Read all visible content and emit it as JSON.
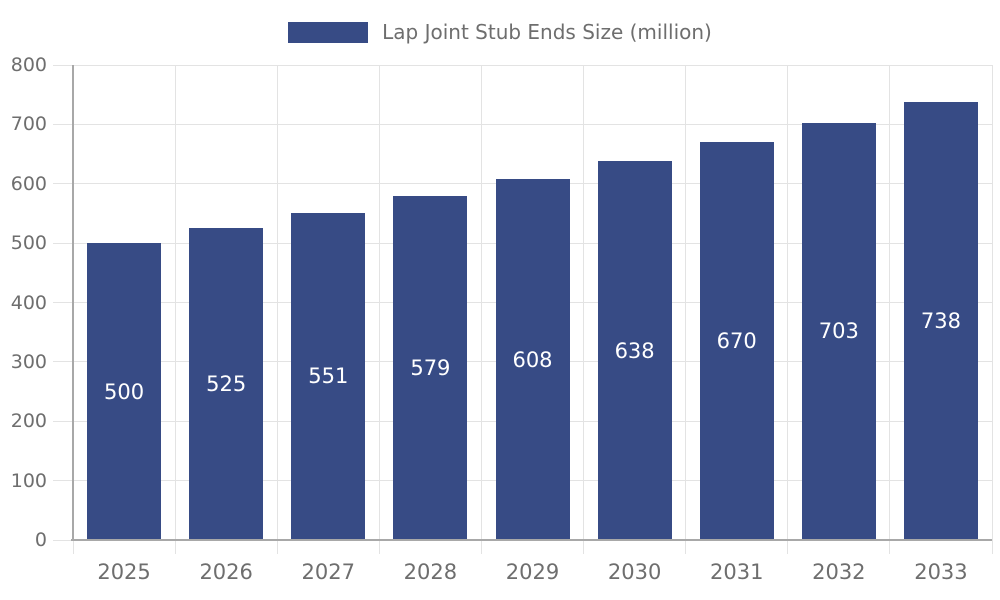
{
  "legend": {
    "label": "Lap Joint Stub Ends Size (million)"
  },
  "chart_data": {
    "type": "bar",
    "title": "Lap Joint Stub Ends Size (million)",
    "categories": [
      "2025",
      "2026",
      "2027",
      "2028",
      "2029",
      "2030",
      "2031",
      "2032",
      "2033"
    ],
    "values": [
      500,
      525,
      551,
      579,
      608,
      638,
      670,
      703,
      738
    ],
    "xlabel": "",
    "ylabel": "",
    "ylim": [
      0,
      800
    ],
    "yticks": [
      0,
      100,
      200,
      300,
      400,
      500,
      600,
      700,
      800
    ],
    "grid": true,
    "legend_position": "top-center",
    "bar_labels_inside": true,
    "colors": {
      "bar": "#374B85",
      "bar_label": "#FFFFFF",
      "grid": "#E3E3E3",
      "axis": "#A8A8A8",
      "tick_text": "#6E6E6E",
      "legend_text": "#6E6E6E",
      "background": "#FFFFFF"
    }
  }
}
